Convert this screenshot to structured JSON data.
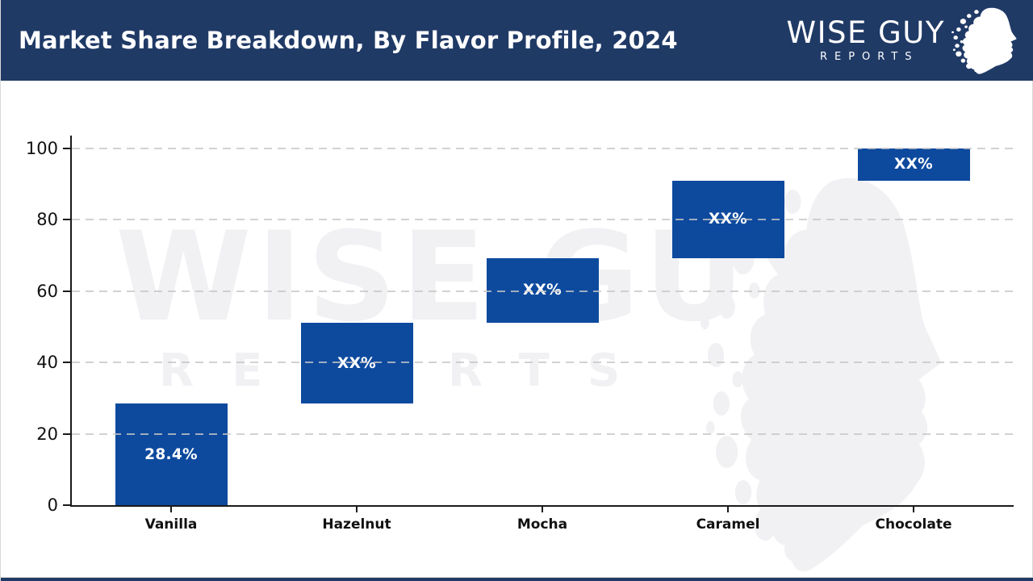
{
  "header": {
    "title": "Market Share Breakdown, By Flavor Profile, 2024",
    "logo": {
      "name": "WISE GUY",
      "sub": "REPORTS"
    }
  },
  "watermark": {
    "name": "WISE GUY",
    "sub": "REPORTS"
  },
  "colors": {
    "header_bg": "#203a66",
    "footer_bg": "#203a66",
    "bar": "#0d4a9e",
    "bar_label": "#ffffff",
    "grid": "#d8d8d8",
    "axis": "#1a1a1a",
    "watermark": "#f1f1f4"
  },
  "chart_data": {
    "type": "bar",
    "variant": "waterfall",
    "title": "Market Share Breakdown, By Flavor Profile, 2024",
    "categories": [
      "Vanilla",
      "Hazelnut",
      "Mocha",
      "Caramel",
      "Chocolate"
    ],
    "bars": [
      {
        "category": "Vanilla",
        "start": 0,
        "end": 28.4,
        "label": "28.4%"
      },
      {
        "category": "Hazelnut",
        "start": 28.4,
        "end": 51.2,
        "label": "XX%"
      },
      {
        "category": "Mocha",
        "start": 51.2,
        "end": 69.2,
        "label": "XX%"
      },
      {
        "category": "Caramel",
        "start": 69.2,
        "end": 91.0,
        "label": "XX%"
      },
      {
        "category": "Chocolate",
        "start": 91.0,
        "end": 100.0,
        "label": "XX%"
      }
    ],
    "yticks": [
      0,
      20,
      40,
      60,
      80,
      100
    ],
    "ylim": [
      0,
      105
    ],
    "xlabel": "",
    "ylabel": "",
    "grid": "horizontal-dashed",
    "legend": "none"
  }
}
